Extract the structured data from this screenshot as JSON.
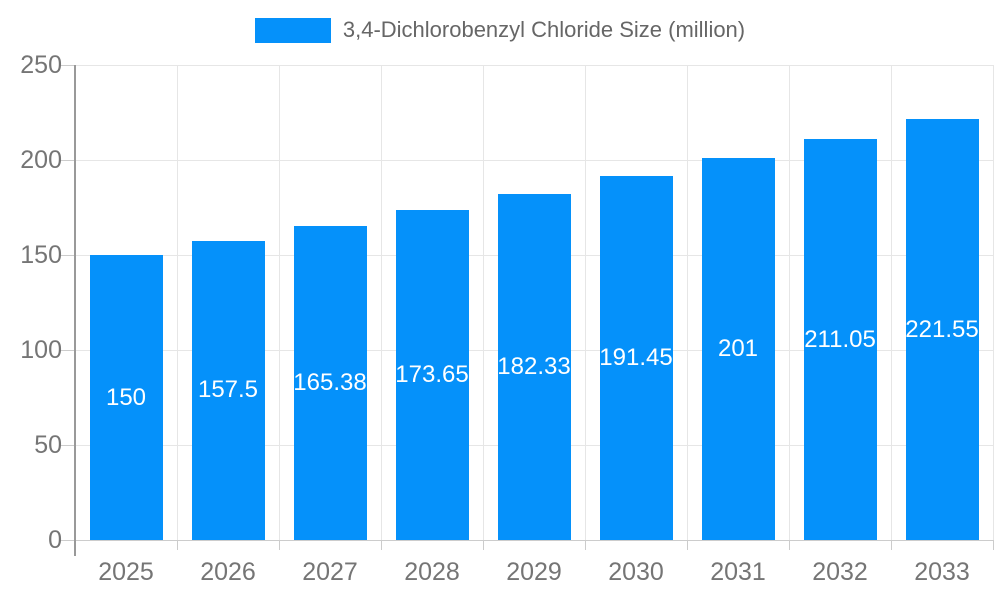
{
  "legend": {
    "label": "3,4-Dichlorobenzyl Chloride Size (million)"
  },
  "colors": {
    "background": "#ffffff",
    "bar": "#0591fa",
    "bar_label": "#ffffff",
    "legend_text": "#666666",
    "axis_text": "#757575",
    "gridline": "#e6e6e6",
    "tick": "#cccccc",
    "axis_line": "#999999"
  },
  "chart_data": {
    "type": "bar",
    "title": "3,4-Dichlorobenzyl Chloride Size (million)",
    "series_name": "3,4-Dichlorobenzyl Chloride Size (million)",
    "categories": [
      "2025",
      "2026",
      "2027",
      "2028",
      "2029",
      "2030",
      "2031",
      "2032",
      "2033"
    ],
    "values": [
      150,
      157.5,
      165.38,
      173.65,
      182.33,
      191.45,
      201,
      211.05,
      221.55
    ],
    "value_labels": [
      "150",
      "157.5",
      "165.38",
      "173.65",
      "182.33",
      "191.45",
      "201",
      "211.05",
      "221.55"
    ],
    "xlabel": "",
    "ylabel": "",
    "ylim": [
      0,
      250
    ],
    "ytick_interval": 50,
    "ytick_labels": [
      "0",
      "50",
      "100",
      "150",
      "200",
      "250"
    ],
    "grid": true,
    "legend_position": "top"
  }
}
